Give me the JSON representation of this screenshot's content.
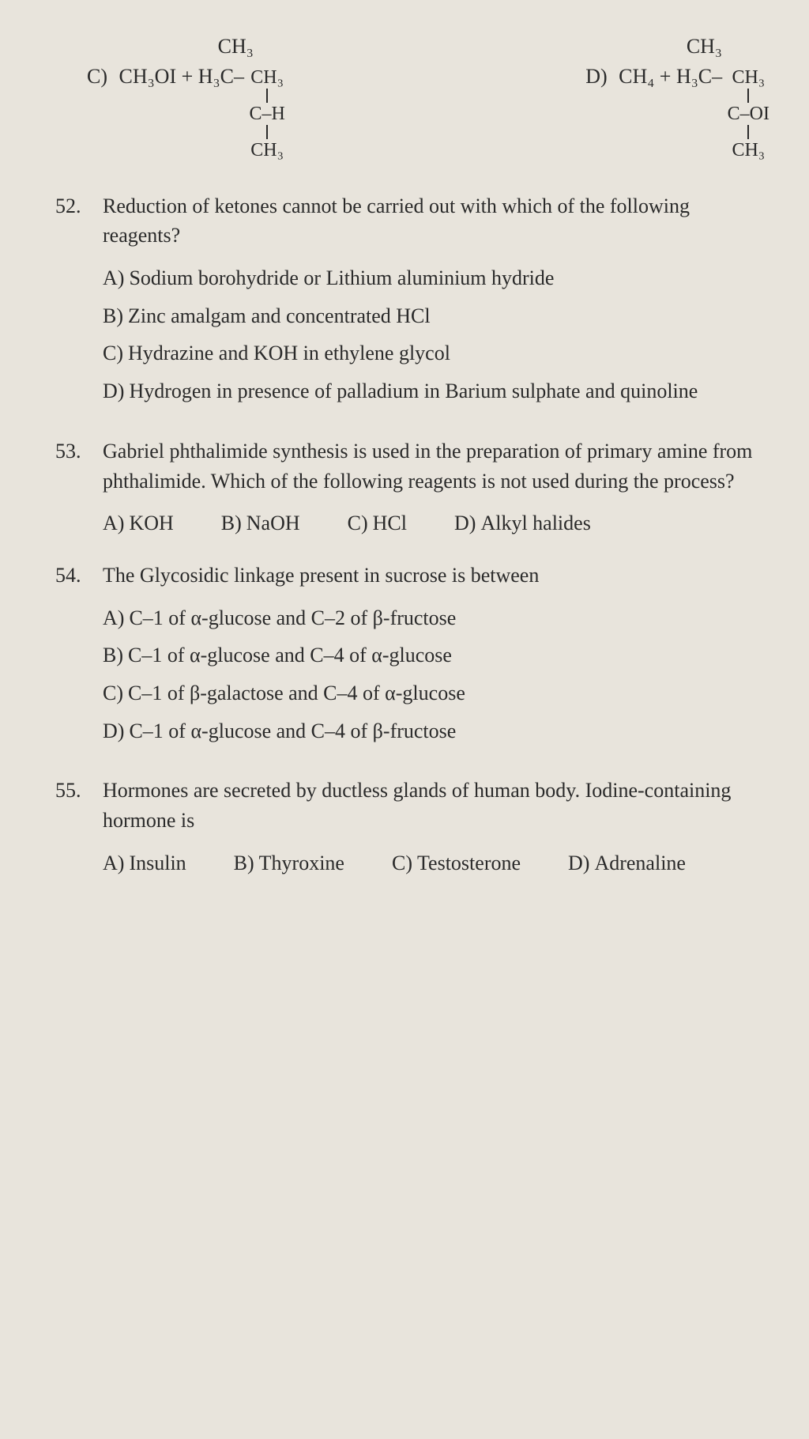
{
  "topStructures": {
    "left": {
      "letter": "C)",
      "prefix": "CH₃OI + H₃C–",
      "top": "CH₃",
      "mid": "C–H",
      "bot": "CH₃",
      "topExtra": "CH₃"
    },
    "right": {
      "letter": "D)",
      "prefix": "CH₄ + H₃C–",
      "top": "CH₃",
      "mid": "C–OI",
      "bot": "CH₃",
      "topExtra": "CH₃"
    }
  },
  "questions": [
    {
      "num": "52.",
      "stem": "Reduction of ketones cannot be carried out with which of the following reagents?",
      "layout": "vertical",
      "opts": [
        {
          "l": "A)",
          "t": "Sodium borohydride or Lithium aluminium hydride"
        },
        {
          "l": "B)",
          "t": "Zinc amalgam and concentrated HCl"
        },
        {
          "l": "C)",
          "t": "Hydrazine and KOH in ethylene glycol"
        },
        {
          "l": "D)",
          "t": "Hydrogen in presence of palladium in Barium sulphate and quinoline"
        }
      ]
    },
    {
      "num": "53.",
      "stem": "Gabriel phthalimide synthesis is used in the preparation of primary amine from phthalimide. Which of the following reagents is not used during the process?",
      "layout": "horizontal",
      "opts": [
        {
          "l": "A)",
          "t": "KOH"
        },
        {
          "l": "B)",
          "t": "NaOH"
        },
        {
          "l": "C)",
          "t": "HCl"
        },
        {
          "l": "D)",
          "t": "Alkyl halides"
        }
      ]
    },
    {
      "num": "54.",
      "stem": "The Glycosidic linkage present in sucrose is between",
      "layout": "vertical",
      "opts": [
        {
          "l": "A)",
          "t": "C–1 of α-glucose and C–2 of β-fructose"
        },
        {
          "l": "B)",
          "t": "C–1 of α-glucose and C–4 of α-glucose"
        },
        {
          "l": "C)",
          "t": "C–1 of β-galactose and C–4 of α-glucose"
        },
        {
          "l": "D)",
          "t": "C–1 of α-glucose and C–4 of β-fructose"
        }
      ]
    },
    {
      "num": "55.",
      "stem": "Hormones are secreted by ductless glands of human body. Iodine-containing hormone is",
      "layout": "horizontal",
      "opts": [
        {
          "l": "A)",
          "t": "Insulin"
        },
        {
          "l": "B)",
          "t": "Thyroxine"
        },
        {
          "l": "C)",
          "t": "Testosterone"
        },
        {
          "l": "D)",
          "t": "Adrenaline"
        }
      ]
    }
  ]
}
